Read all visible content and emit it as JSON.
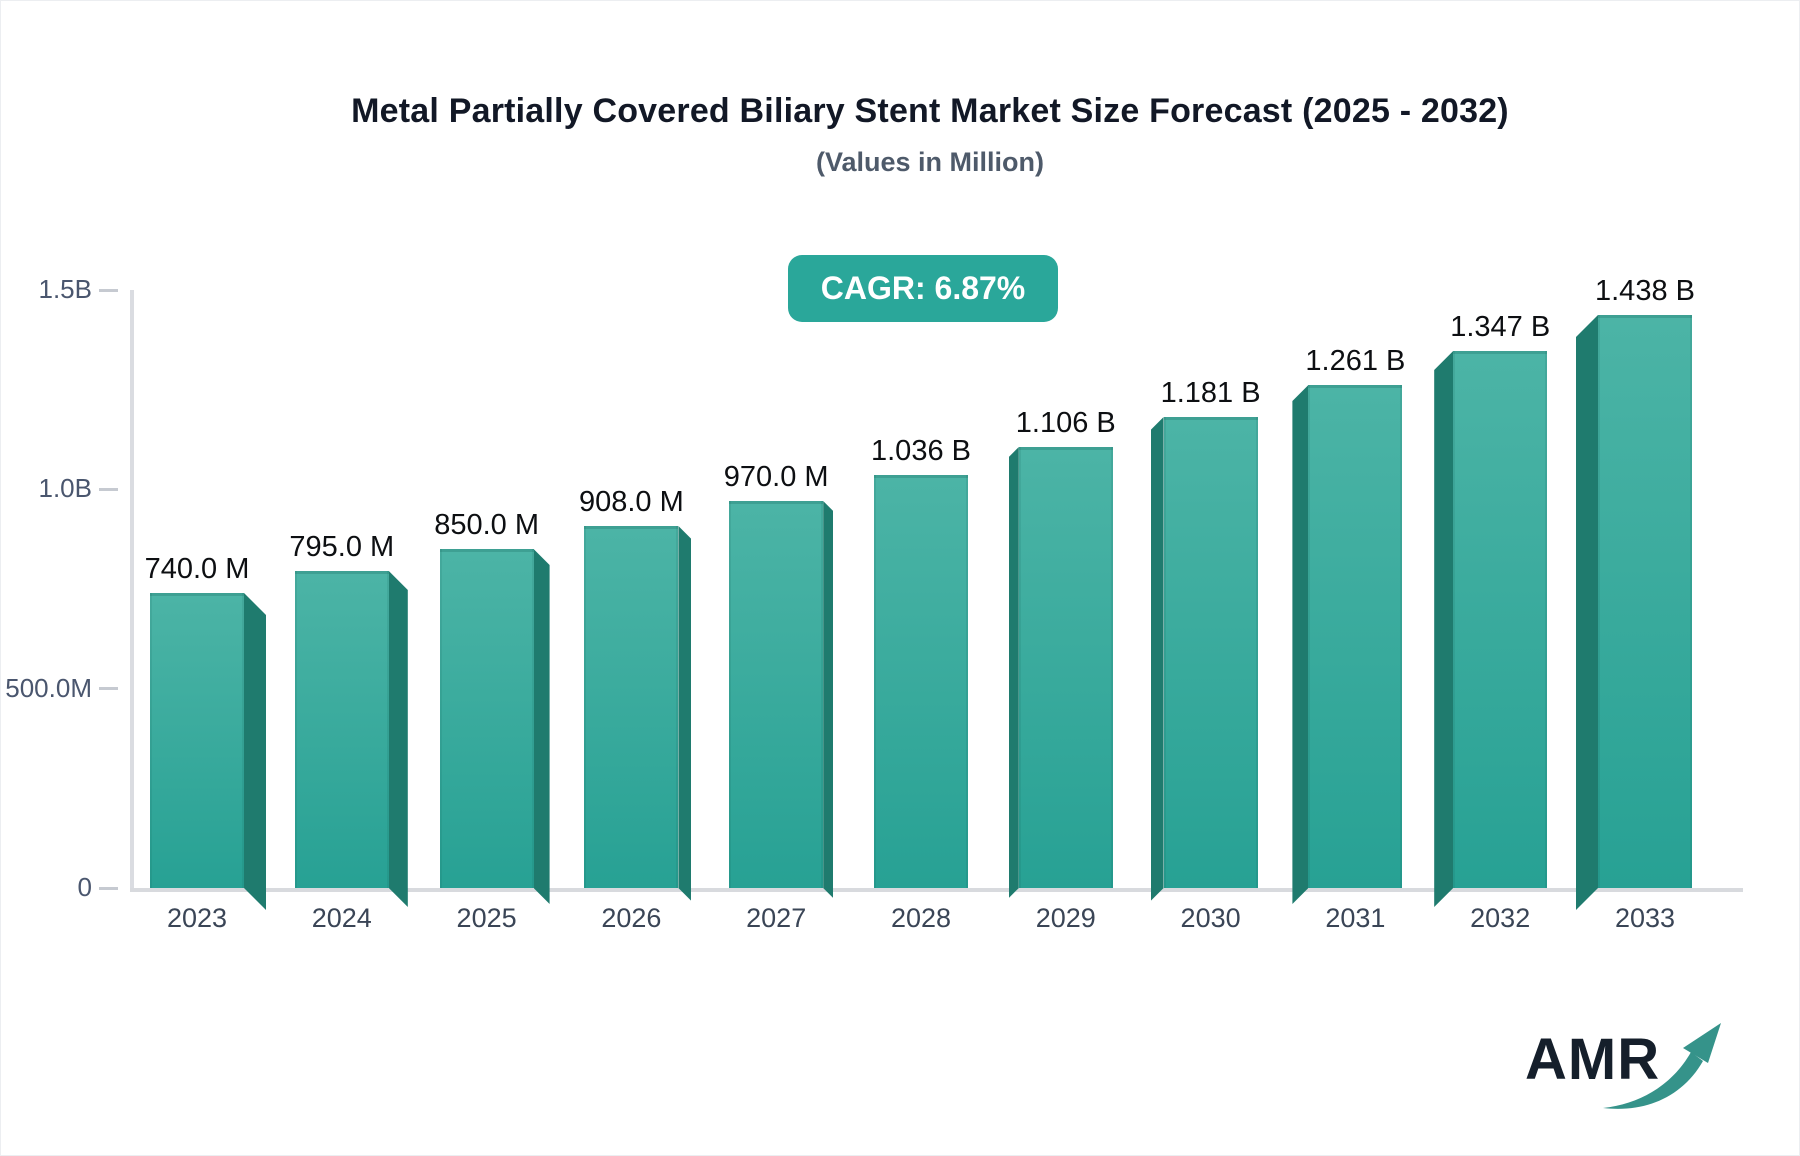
{
  "header": {
    "title": "Metal Partially Covered Biliary Stent Market Size Forecast (2025 - 2032)",
    "subtitle": "(Values in Million)"
  },
  "badge": {
    "label": "CAGR: 6.87%",
    "bg_color": "#2aa79a",
    "text_color": "#ffffff"
  },
  "chart_data": {
    "type": "bar",
    "title": "Metal Partially Covered Biliary Stent Market Size Forecast (2025 - 2032)",
    "subtitle": "(Values in Million)",
    "cagr_percent": 6.87,
    "categories": [
      "2023",
      "2024",
      "2025",
      "2026",
      "2027",
      "2028",
      "2029",
      "2030",
      "2031",
      "2032",
      "2033"
    ],
    "values_millions": [
      740,
      795,
      850,
      908,
      970,
      1036,
      1106,
      1181,
      1261,
      1347,
      1438
    ],
    "bar_labels": [
      "740.0 M",
      "795.0 M",
      "850.0 M",
      "908.0 M",
      "970.0 M",
      "1.036 B",
      "1.106 B",
      "1.181 B",
      "1.261 B",
      "1.347 B",
      "1.438 B"
    ],
    "xlabel": "",
    "ylabel": "",
    "ylim_millions": [
      0,
      1500
    ],
    "y_ticks": [
      {
        "label": "1.5B",
        "value_millions": 1500
      },
      {
        "label": "1.0B",
        "value_millions": 1000
      },
      {
        "label": "500.0M",
        "value_millions": 500
      },
      {
        "label": "0",
        "value_millions": 0
      }
    ],
    "grid": false,
    "legend": "none",
    "style_3d": true,
    "bar_color_top": "#4cb4a6",
    "bar_color_bottom": "#27a194",
    "bar_side_color": "#1f7b6e",
    "axis_line_color": "#d8dade"
  },
  "logo": {
    "text": "AMR",
    "text_color": "#151f2b",
    "arrow_color": "#35938a",
    "arrow_icon": "growth-arrow-icon"
  }
}
